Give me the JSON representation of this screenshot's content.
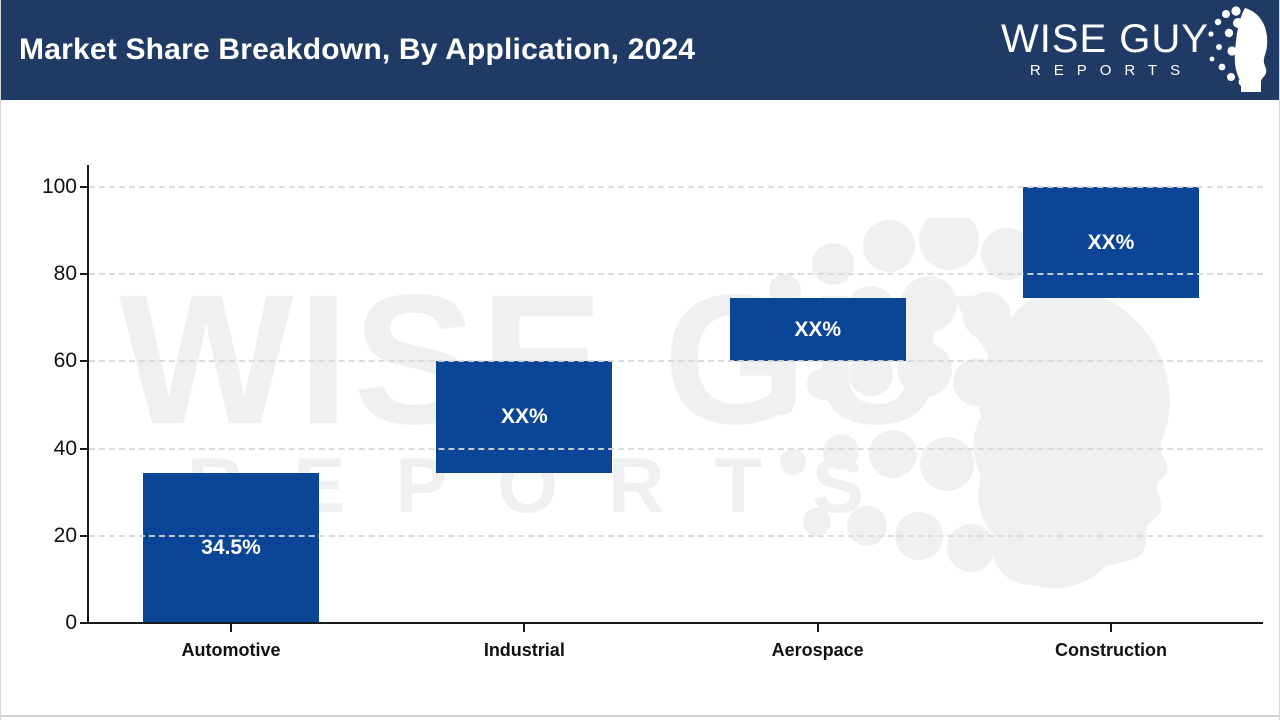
{
  "header": {
    "title": "Market Share Breakdown, By Application, 2024",
    "logo": {
      "name": "WISE GUY",
      "tagline": "REPORTS"
    }
  },
  "watermark": {
    "line1": "WISE GUY",
    "line2": "REPORTS"
  },
  "chart_data": {
    "type": "bar",
    "subtype": "waterfall",
    "title": "Market Share Breakdown, By Application, 2024",
    "categories": [
      "Automotive",
      "Industrial",
      "Aerospace",
      "Construction"
    ],
    "segments": [
      {
        "category": "Automotive",
        "start": 0,
        "end": 34.5,
        "label": "34.5%"
      },
      {
        "category": "Industrial",
        "start": 34.5,
        "end": 60,
        "label": "XX%"
      },
      {
        "category": "Aerospace",
        "start": 60,
        "end": 74.5,
        "label": "XX%"
      },
      {
        "category": "Construction",
        "start": 74.5,
        "end": 100,
        "label": "XX%"
      }
    ],
    "ylim": [
      0,
      100
    ],
    "yticks": [
      0,
      20,
      40,
      60,
      80,
      100
    ],
    "grid": "horizontal-dashed",
    "legend": "none",
    "colors": {
      "bar": "#0a4598",
      "bar_label": "#ffffff",
      "header_bg": "#203a66",
      "grid": "#d9d9d9",
      "axis": "#1a1a1a",
      "tick_label": "#111111",
      "watermark": "#f0f0f3"
    }
  }
}
